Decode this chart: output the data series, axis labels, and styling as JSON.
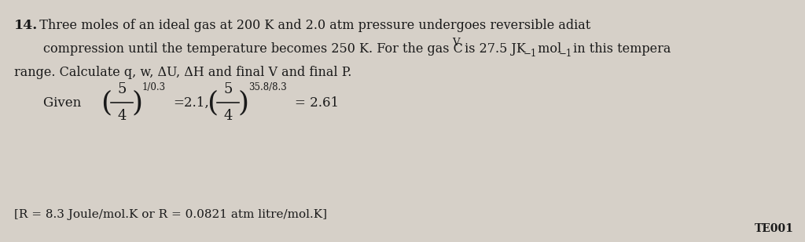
{
  "bg_color": "#d6d0c8",
  "text_color": "#1a1a1a",
  "font_size_main": 11.5,
  "font_size_given": 12,
  "font_size_hint": 11,
  "font_size_corner": 10,
  "line1_num": "14.",
  "line1_text": "  Three moles of an ideal gas at 200 K and 2.0 atm pressure undergoes reversible adiat",
  "line2_text": "compression until the temperature becomes 250 K. For the gas C",
  "line2_cv": "V",
  "line2_after": " is 27.5 JK",
  "line2_sup1": "−1",
  "line2_mol": " mol",
  "line2_sup2": "−1",
  "line2_end": " in this tempera",
  "line3_text": "range. Calculate q, w, ΔU, ΔH and final V and final P.",
  "given_prefix": "Given ",
  "frac_top": "5",
  "frac_bot": "4",
  "exp1": "1/0.3",
  "val1": "=2.1,",
  "exp2": "35.8/8.3",
  "val2": "= 2.61",
  "hint": "[R = 8.3 Joule/mol.K or R = 0.0821 atm litre/mol.K]",
  "corner": "TE001"
}
